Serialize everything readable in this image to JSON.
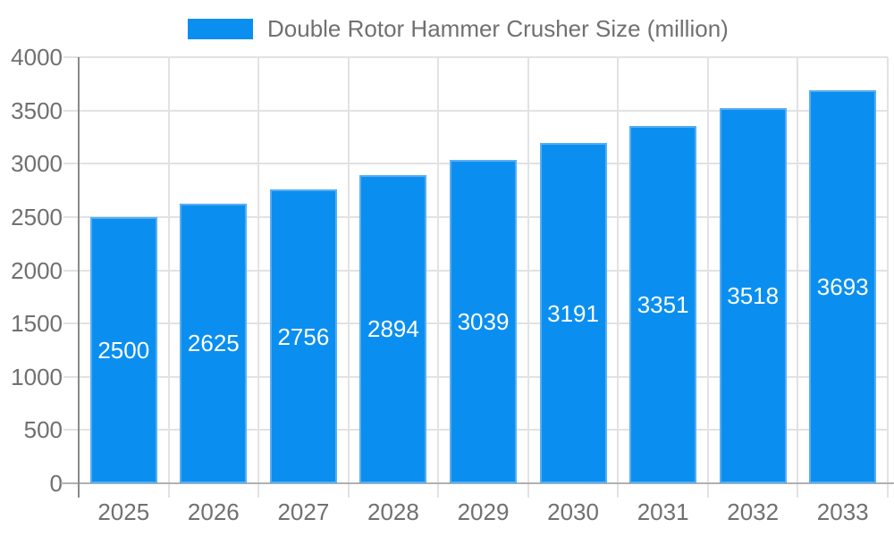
{
  "chart_data": {
    "type": "bar",
    "title": "Double Rotor Hammer Crusher Size (million)",
    "series": [
      {
        "name": "Double Rotor Hammer Crusher Size (million)",
        "values": [
          2500,
          2625,
          2756,
          2894,
          3039,
          3191,
          3351,
          3518,
          3693
        ]
      }
    ],
    "categories": [
      "2025",
      "2026",
      "2027",
      "2028",
      "2029",
      "2030",
      "2031",
      "2032",
      "2033"
    ],
    "xlabel": "",
    "ylabel": "",
    "ylim": [
      0,
      4000
    ],
    "yticks": [
      0,
      500,
      1000,
      1500,
      2000,
      2500,
      3000,
      3500,
      4000
    ],
    "grid": true,
    "value_labels_shown": true,
    "legend_position": "top",
    "colors": {
      "bar_fill": "#0a8ff0",
      "bar_border": "#58aef3",
      "value_label_text": "#ffffff",
      "grid_line": "#e2e2e2",
      "x_axis_line": "#b0b0b0",
      "y_axis_line": "#8a8a8a",
      "axis_text": "#707070",
      "background": "#ffffff"
    }
  }
}
